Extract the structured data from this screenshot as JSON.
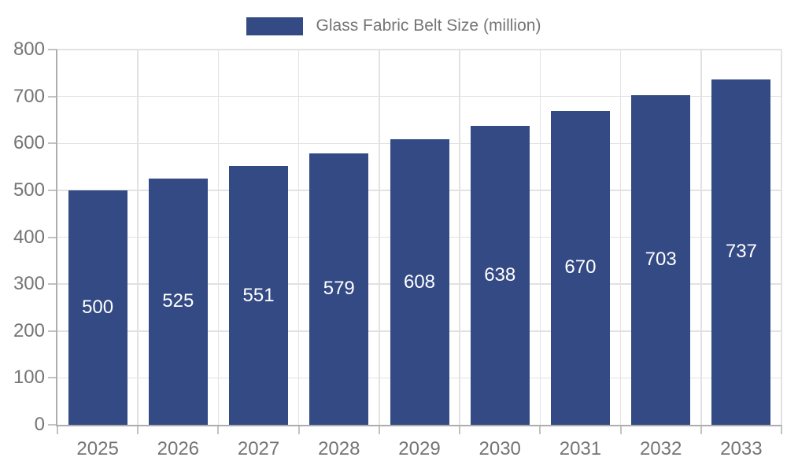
{
  "chart_data": {
    "type": "bar",
    "title": "Glass Fabric Belt Size (million)",
    "categories": [
      "2025",
      "2026",
      "2027",
      "2028",
      "2029",
      "2030",
      "2031",
      "2032",
      "2033"
    ],
    "values": [
      500,
      525,
      551,
      579,
      608,
      638,
      670,
      703,
      737
    ],
    "xlabel": "",
    "ylabel": "",
    "ylim": [
      0,
      800
    ],
    "yticks": [
      0,
      100,
      200,
      300,
      400,
      500,
      600,
      700,
      800
    ],
    "grid": true,
    "legend_position": "top-center",
    "bar_value_labels_visible": true,
    "colors": {
      "bar": "#344A84",
      "bar_label": "#FFFFFF",
      "axis_text": "#757575",
      "grid_line": "#E2E2E2",
      "axis_line": "#ADADAD",
      "tick": "#C2C2C2",
      "background": "#FFFFFF"
    }
  }
}
